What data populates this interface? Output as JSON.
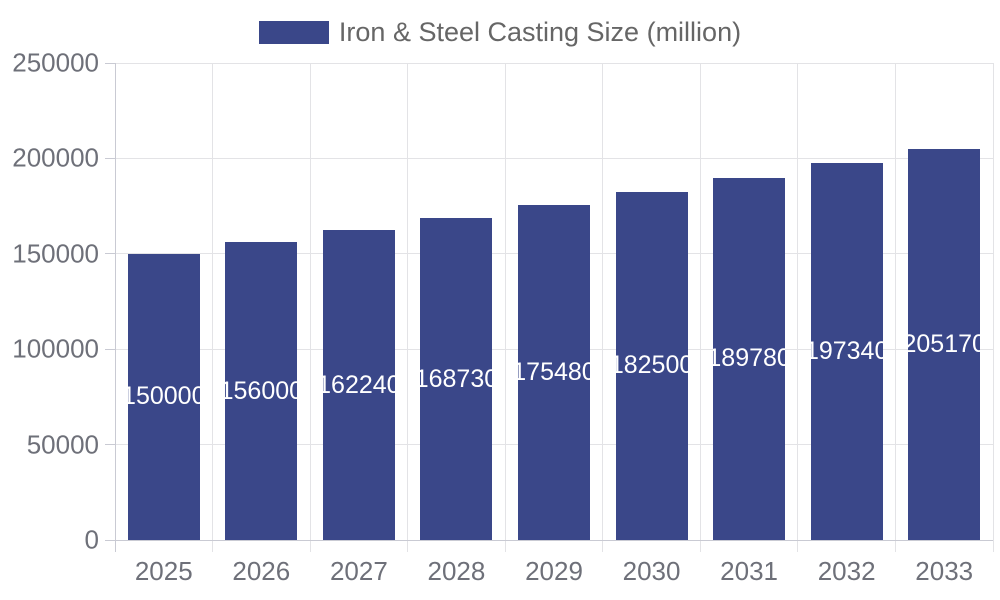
{
  "legend": {
    "label": "Iron & Steel Casting Size (million)"
  },
  "chart_data": {
    "type": "bar",
    "title": "Iron & Steel Casting Size (million)",
    "xlabel": "",
    "ylabel": "",
    "categories": [
      "2025",
      "2026",
      "2027",
      "2028",
      "2029",
      "2030",
      "2031",
      "2032",
      "2033"
    ],
    "series": [
      {
        "name": "Iron & Steel Casting Size (million)",
        "values": [
          150000,
          156000,
          162240,
          168730,
          175480,
          182500,
          189780,
          197340,
          205170
        ]
      }
    ],
    "bar_labels": [
      "150000",
      "156000",
      "162240",
      "168730",
      "175480",
      "182500",
      "189780",
      "197340",
      "205170"
    ],
    "ylim": [
      0,
      250000
    ],
    "yticks": [
      0,
      50000,
      100000,
      150000,
      200000,
      250000
    ],
    "ytick_labels": [
      "0",
      "50000",
      "100000",
      "150000",
      "200000",
      "250000"
    ],
    "grid": true,
    "legend_position": "top",
    "colors": {
      "bar": "#3A4789",
      "bar_label_text": "#FFFFFF",
      "grid_line": "#E3E3E6",
      "axis_line": "#C9CAD3",
      "tick_label": "#6E7079",
      "legend_text": "#666666",
      "background": "#FFFFFF"
    }
  }
}
